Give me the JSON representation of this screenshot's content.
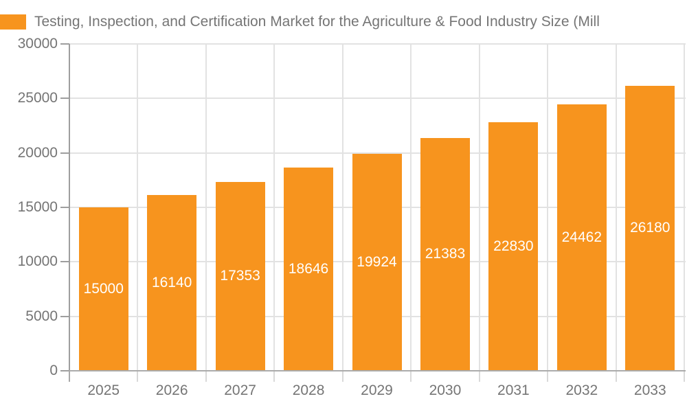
{
  "chart_data": {
    "type": "bar",
    "series_name": "Testing, Inspection, and Certification Market for the Agriculture & Food Industry Size (Mill",
    "categories": [
      "2025",
      "2026",
      "2027",
      "2028",
      "2029",
      "2030",
      "2031",
      "2032",
      "2033"
    ],
    "values": [
      15000,
      16140,
      17353,
      18646,
      19924,
      21383,
      22830,
      24462,
      26180
    ],
    "ylim": [
      0,
      30000
    ],
    "yticks": [
      0,
      5000,
      10000,
      15000,
      20000,
      25000,
      30000
    ],
    "grid": true,
    "legend_position": "top-left",
    "value_labels_position": "inside-center",
    "bar_color": "#F7941E",
    "value_label_color": "#FFFFFF"
  },
  "colors": {
    "bar": "#F7941E",
    "axis_text": "#757575",
    "grid_line": "#E2E2E2",
    "axis_line_x": "#ABABAB",
    "axis_line_y": "#9E9E9E",
    "tick_light": "#D9D9D9",
    "background": "#FFFFFF"
  }
}
